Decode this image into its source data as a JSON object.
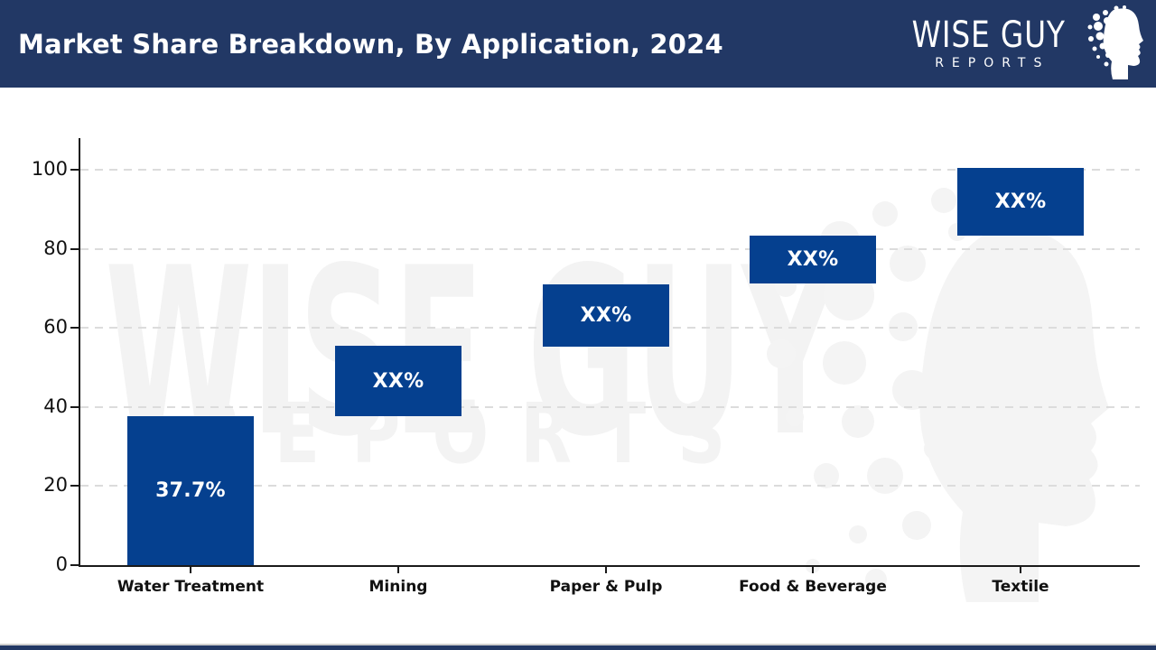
{
  "header": {
    "title": "Market Share Breakdown, By Application, 2024",
    "logo": {
      "line1": "WISE GUY",
      "line2": "REPORTS"
    }
  },
  "watermark": {
    "line1": "WISE GUY",
    "line2": "REPORTS"
  },
  "chart_data": {
    "type": "bar",
    "subtype": "waterfall",
    "title": "Market Share Breakdown, By Application, 2024",
    "categories": [
      "Water Treatment",
      "Mining",
      "Paper & Pulp",
      "Food & Beverage",
      "Textile"
    ],
    "segments": [
      {
        "category": "Water Treatment",
        "start": 0,
        "end": 37.7,
        "label": "37.7%"
      },
      {
        "category": "Mining",
        "start": 37.7,
        "end": 55.5,
        "label": "XX%"
      },
      {
        "category": "Paper & Pulp",
        "start": 55.4,
        "end": 71.1,
        "label": "XX%"
      },
      {
        "category": "Food & Beverage",
        "start": 71.2,
        "end": 83.4,
        "label": "XX%"
      },
      {
        "category": "Textile",
        "start": 83.5,
        "end": 100.6,
        "label": "XX%"
      }
    ],
    "xlabel": "",
    "ylabel": "",
    "ylim": [
      0,
      107
    ],
    "yticks": [
      0,
      20,
      40,
      60,
      80,
      100
    ],
    "grid": "horizontal-dashed",
    "legend": "none",
    "bar_color": "#05408F",
    "value_label_color": "#ffffff"
  },
  "colors": {
    "header_bg": "#223865",
    "bar": "#05408F",
    "grid": "#dcdcdc",
    "axis": "#1a1a1a",
    "watermark": "#f3f3f3",
    "footer_bar": "#223865"
  }
}
